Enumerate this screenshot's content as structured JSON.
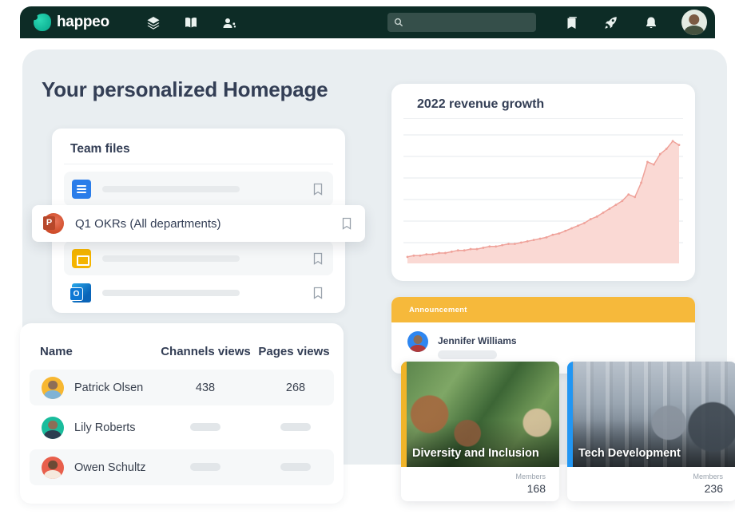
{
  "navbar": {
    "logo": "happeo",
    "search_placeholder": ""
  },
  "page": {
    "title": "Your personalized Homepage"
  },
  "team_files": {
    "title": "Team files",
    "highlight_label": "Q1 OKRs (All departments)",
    "file_icons": [
      "google-docs-icon",
      "powerpoint-icon",
      "google-slides-icon",
      "outlook-icon"
    ]
  },
  "stats_table": {
    "headers": [
      "Name",
      "Channels views",
      "Pages views"
    ],
    "rows": [
      {
        "name": "Patrick Olsen",
        "channels": "438",
        "pages": "268"
      },
      {
        "name": "Lily Roberts",
        "channels": "",
        "pages": ""
      },
      {
        "name": "Owen Schultz",
        "channels": "",
        "pages": ""
      }
    ]
  },
  "revenue": {
    "title": "2022 revenue growth"
  },
  "chart_data": {
    "type": "area",
    "title": "2022 revenue growth",
    "x_label": "",
    "y_label": "",
    "ylim": [
      0,
      100
    ],
    "grid": true,
    "line_color": "#EFA29A",
    "fill_color": "#FAD9D4",
    "values": [
      5,
      6,
      6,
      7,
      7,
      8,
      8,
      9,
      10,
      10,
      11,
      11,
      12,
      13,
      13,
      14,
      15,
      15,
      16,
      17,
      18,
      19,
      20,
      22,
      23,
      25,
      27,
      29,
      31,
      34,
      36,
      39,
      42,
      45,
      48,
      53,
      51,
      62,
      78,
      76,
      84,
      88,
      94,
      91
    ]
  },
  "announcement": {
    "badge": "Announcement",
    "author": "Jennifer Williams",
    "accent_color": "#F6B93B"
  },
  "channels": [
    {
      "title": "Diversity and Inclusion",
      "members_label": "Members",
      "members": "168",
      "accent_color": "#F0B429"
    },
    {
      "title": "Tech Development",
      "members_label": "Members",
      "members": "236",
      "accent_color": "#2196F3"
    }
  ],
  "colors": {
    "navbar_bg": "#0D2C26",
    "brand_teal": "#14BA9B",
    "panel_bg": "#E9EEF1",
    "text_dark": "#333E55"
  }
}
